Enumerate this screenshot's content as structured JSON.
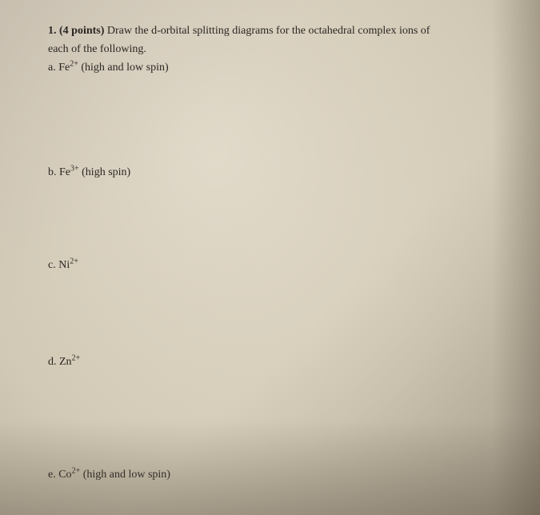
{
  "question": {
    "number": "1.",
    "points": "(4 points)",
    "text_line1": "Draw the d-orbital splitting diagrams for the octahedral complex ions of",
    "text_line2": "each of the following."
  },
  "parts": {
    "a": {
      "label": "a.",
      "ion_base": "Fe",
      "ion_sup": "2+",
      "note": "(high and low spin)"
    },
    "b": {
      "label": "b.",
      "ion_base": "Fe",
      "ion_sup": "3+",
      "note": "(high spin)"
    },
    "c": {
      "label": "c.",
      "ion_base": "Ni",
      "ion_sup": "2+",
      "note": ""
    },
    "d": {
      "label": "d.",
      "ion_base": "Zn",
      "ion_sup": "2+",
      "note": ""
    },
    "e": {
      "label": "e.",
      "ion_base": "Co",
      "ion_sup": "2+",
      "note": "(high and low spin)"
    }
  }
}
